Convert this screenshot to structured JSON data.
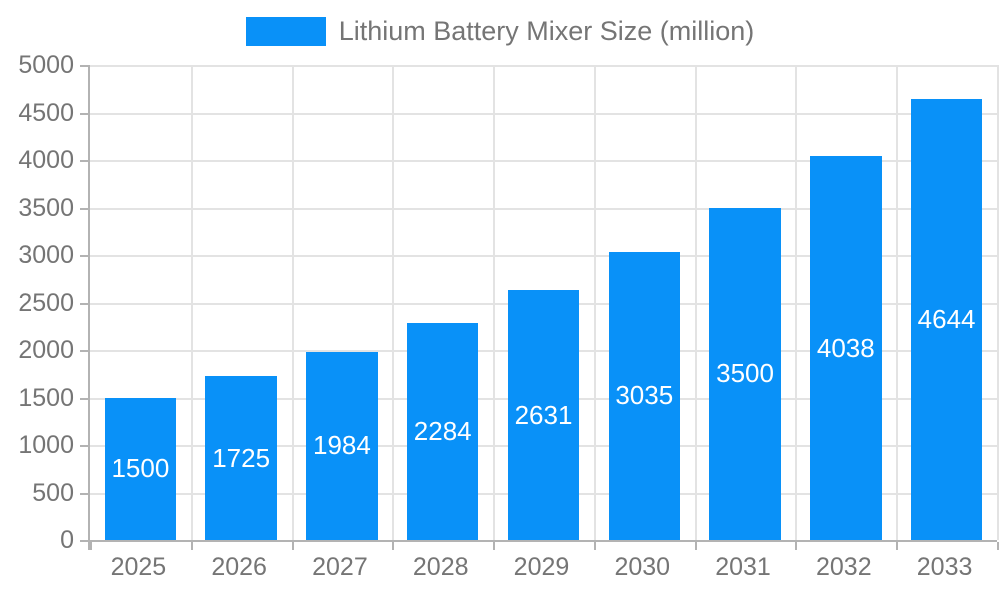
{
  "legend": {
    "label": "Lithium Battery Mixer Size (million)"
  },
  "colors": {
    "bar": "#0991f8",
    "bar_label": "#ffffff",
    "axis_text": "#757575",
    "grid": "#e3e3e3",
    "axis_line": "#b3b3b3",
    "background": "#ffffff"
  },
  "chart_data": {
    "type": "bar",
    "title": "Lithium Battery Mixer Size (million)",
    "categories": [
      "2025",
      "2026",
      "2027",
      "2028",
      "2029",
      "2030",
      "2031",
      "2032",
      "2033"
    ],
    "values": [
      1500,
      1725,
      1984,
      2284,
      2631,
      3035,
      3500,
      4038,
      4644
    ],
    "series_name": "Lithium Battery Mixer Size (million)",
    "xlabel": "",
    "ylabel": "",
    "ylim": [
      0,
      5000
    ],
    "yticks": [
      0,
      500,
      1000,
      1500,
      2000,
      2500,
      3000,
      3500,
      4000,
      4500,
      5000
    ],
    "grid": true,
    "legend_position": "top",
    "bar_label_position": "center",
    "bar_band_fraction": 0.71
  }
}
